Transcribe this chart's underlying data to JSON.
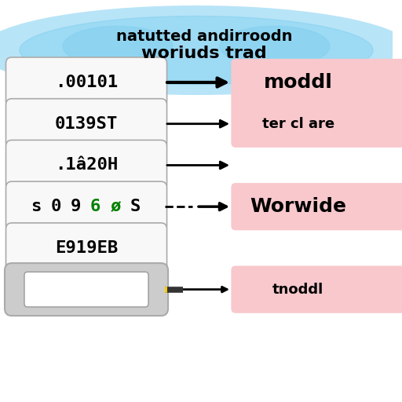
{
  "title_line1": "natutted andirroodn",
  "title_line2": "woriuds trad",
  "background_color": "#ffffff",
  "cloud_color_light": "#b8e4f7",
  "cloud_color_mid": "#7dcef0",
  "left_panel_bg": "#f5f5f5",
  "left_panel_border": "#bbbbbb",
  "right_box_bg": "#f8c8cc",
  "rows": [
    {
      "left_text": ".00101",
      "right_text": "moddl",
      "arrow": "thick",
      "right_visible": true,
      "green_chars": []
    },
    {
      "left_text": "0139ST",
      "right_text": "ter cl are",
      "arrow": "medium",
      "right_visible": true,
      "green_chars": []
    },
    {
      "left_text": ".1â20H",
      "right_text": "",
      "arrow": "medium",
      "right_visible": false,
      "green_chars": []
    },
    {
      "left_text": "s096øS",
      "right_text": "Worwide",
      "arrow": "dashed",
      "right_visible": true,
      "green_chars": [
        3,
        4
      ]
    },
    {
      "left_text": "E919EB",
      "right_text": "",
      "arrow": "none",
      "right_visible": false,
      "green_chars": []
    },
    {
      "left_text": "",
      "right_text": "tnoddl",
      "arrow": "pencil",
      "right_visible": true,
      "green_chars": []
    }
  ]
}
